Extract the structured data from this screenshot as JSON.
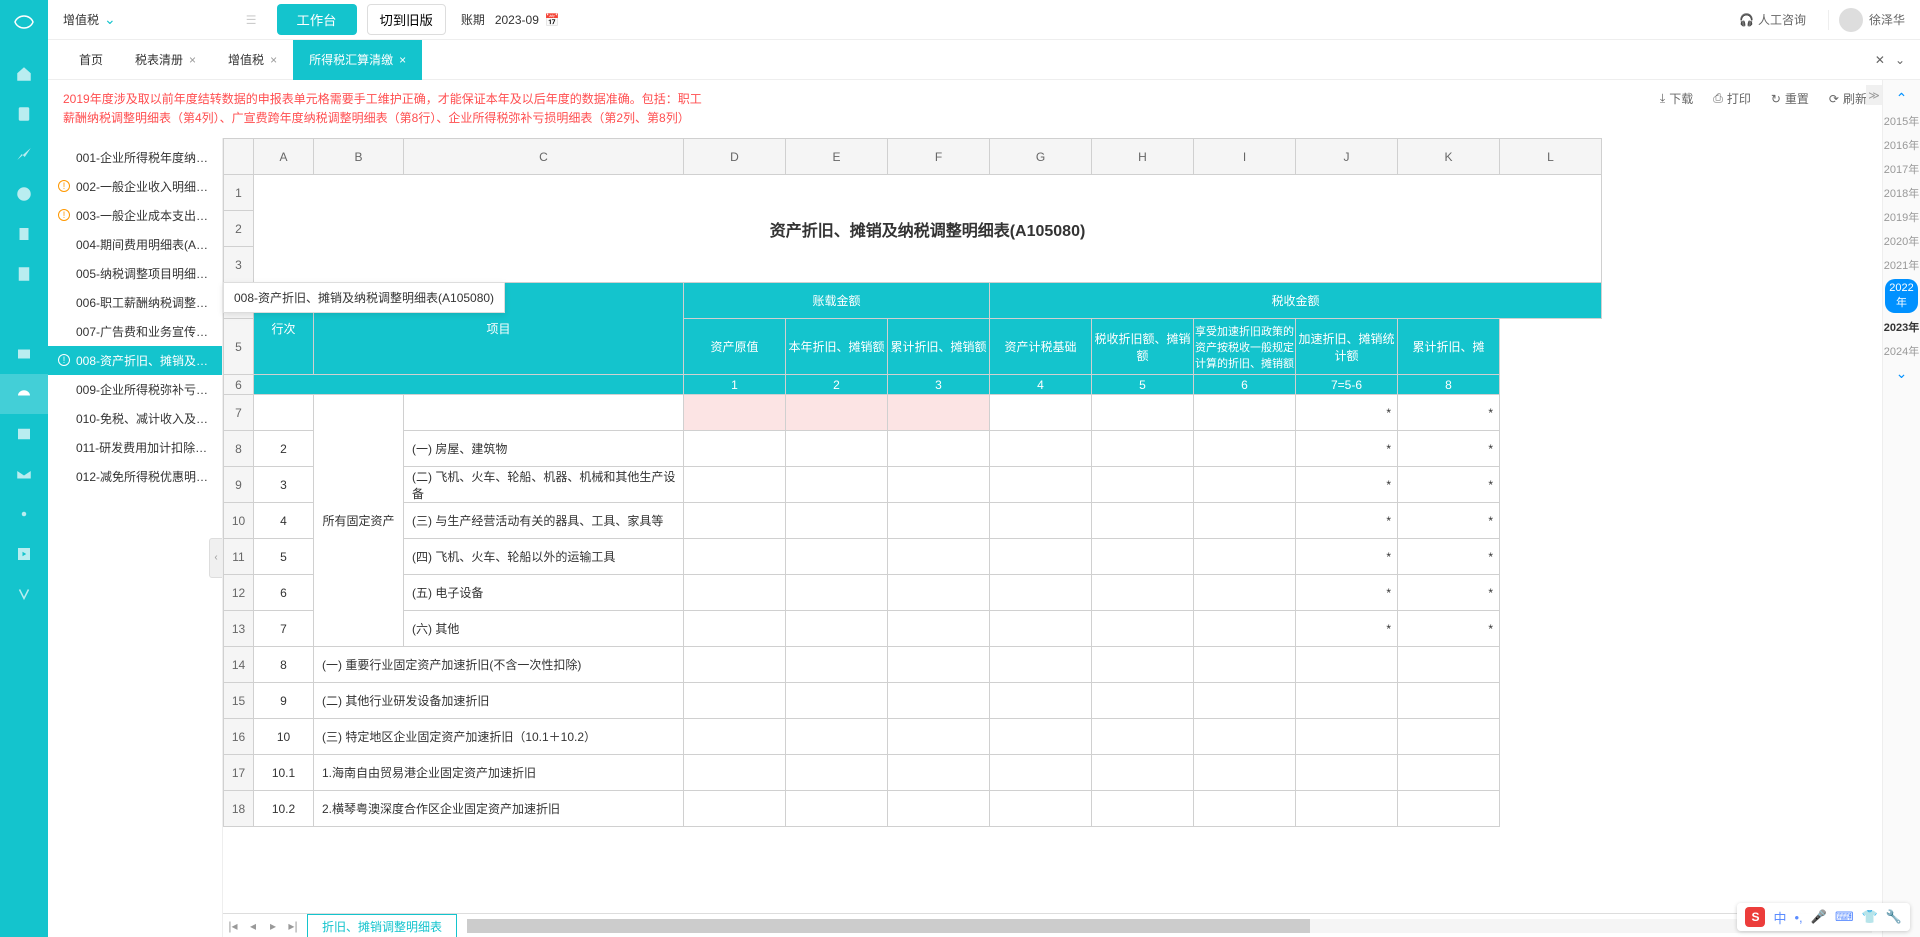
{
  "header": {
    "dropdown_label": "增值税",
    "btn_workspace": "工作台",
    "btn_switch": "切到旧版",
    "period_label": "账期",
    "period_value": "2023-09",
    "help_text": "人工咨询",
    "username": "徐泽华"
  },
  "tabs": {
    "items": [
      {
        "label": "首页",
        "closable": false,
        "active": false
      },
      {
        "label": "税表清册",
        "closable": true,
        "active": false
      },
      {
        "label": "增值税",
        "closable": true,
        "active": false
      },
      {
        "label": "所得税汇算清缴",
        "closable": true,
        "active": true
      }
    ]
  },
  "warning": "2019年度涉及取以前年度结转数据的申报表单元格需要手工维护正确，才能保证本年及以后年度的数据准确。包括：职工薪酬纳税调整明细表（第4列）、广宣费跨年度纳税调整明细表（第8行）、企业所得税弥补亏损明细表（第2列、第8列）",
  "actions": {
    "download": "下载",
    "print": "打印",
    "reset": "重置",
    "refresh": "刷新"
  },
  "tree": {
    "items": [
      {
        "badge": "",
        "label": "001-企业所得税年度纳税申…"
      },
      {
        "badge": "!",
        "label": "002-一般企业收入明细表(A1…"
      },
      {
        "badge": "!",
        "label": "003-一般企业成本支出明细…"
      },
      {
        "badge": "",
        "label": "004-期间费用明细表(A1040…"
      },
      {
        "badge": "",
        "label": "005-纳税调整项目明细表(A1…"
      },
      {
        "badge": "",
        "label": "006-职工薪酬纳税调整明细…"
      },
      {
        "badge": "",
        "label": "007-广告费和业务宣传费跨…"
      },
      {
        "badge": "!",
        "label": "008-资产折旧、摊销及纳税…",
        "active": true
      },
      {
        "badge": "",
        "label": "009-企业所得税弥补亏损明…"
      },
      {
        "badge": "",
        "label": "010-免税、减计收入及加计…"
      },
      {
        "badge": "",
        "label": "011-研发费用加计扣除优惠…"
      },
      {
        "badge": "",
        "label": "012-减免所得税优惠明细表(…"
      }
    ],
    "tooltip": "008-资产折旧、摊销及纳税调整明细表(A105080)"
  },
  "sheet": {
    "title": "资产折旧、摊销及纳税调整明细表(A105080)",
    "col_letters": [
      "A",
      "B",
      "C",
      "D",
      "E",
      "F",
      "G",
      "H",
      "I",
      "J",
      "K",
      "L"
    ],
    "group_headers": {
      "g1": "账载金额",
      "g2": "税收金额"
    },
    "headers": {
      "h_line": "行次",
      "h_item": "项目",
      "h_d": "资产原值",
      "h_e": "本年折旧、摊销额",
      "h_f": "累计折旧、摊销额",
      "h_g": "资产计税基础",
      "h_h": "税收折旧额、摊销额",
      "h_i": "享受加速折旧政策的资产按税收一般规定计算的折旧、摊销额",
      "h_j": "加速折旧、摊销统计额",
      "h_k": "累计折旧、摊"
    },
    "col_nums": {
      "d": "1",
      "e": "2",
      "f": "3",
      "g": "4",
      "h": "5",
      "i": "6",
      "j": "7=5-6",
      "k": "8"
    },
    "category": "所有固定资产",
    "rows": [
      {
        "rn": "7",
        "line": "",
        "desc": ""
      },
      {
        "rn": "8",
        "line": "2",
        "desc": "(一)  房屋、建筑物"
      },
      {
        "rn": "9",
        "line": "3",
        "desc": "(二)  飞机、火车、轮船、机器、机械和其他生产设备"
      },
      {
        "rn": "10",
        "line": "4",
        "desc": "(三)  与生产经营活动有关的器具、工具、家具等"
      },
      {
        "rn": "11",
        "line": "5",
        "desc": "(四)  飞机、火车、轮船以外的运输工具"
      },
      {
        "rn": "12",
        "line": "6",
        "desc": "(五)  电子设备"
      },
      {
        "rn": "13",
        "line": "7",
        "desc": "(六)  其他"
      },
      {
        "rn": "14",
        "line": "8",
        "desc": "(一)  重要行业固定资产加速折旧(不含一次性扣除)"
      },
      {
        "rn": "15",
        "line": "9",
        "desc": "(二)  其他行业研发设备加速折旧"
      },
      {
        "rn": "16",
        "line": "10",
        "desc": "(三)  特定地区企业固定资产加速折旧（10.1＋10.2）"
      },
      {
        "rn": "17",
        "line": "10.1",
        "desc": "1.海南自由贸易港企业固定资产加速折旧"
      },
      {
        "rn": "18",
        "line": "10.2",
        "desc": "2.横琴粤澳深度合作区企业固定资产加速折旧"
      }
    ],
    "tab_name": "折旧、摊销调整明细表"
  },
  "years": [
    "2015年",
    "2016年",
    "2017年",
    "2018年",
    "2019年",
    "2020年",
    "2021年",
    "2022年",
    "2023年",
    "2024年"
  ],
  "ime": {
    "mode": "中"
  }
}
